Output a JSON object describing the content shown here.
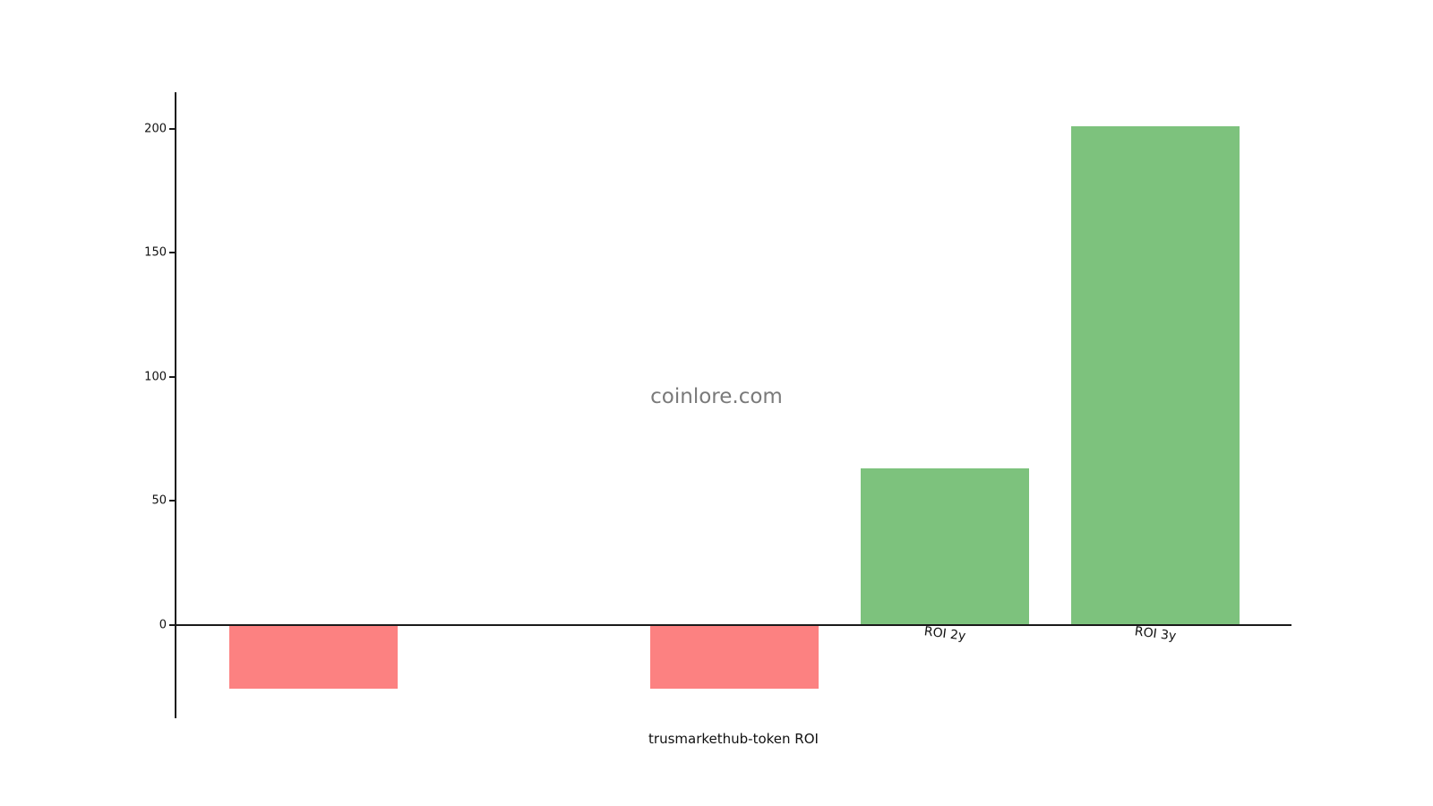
{
  "watermark": {
    "text": "coinlore.com",
    "color": "#7a7a7a"
  },
  "chart_data": {
    "type": "bar",
    "title": "trusmarkethub-token ROI",
    "categories": [
      "",
      "",
      "",
      "ROI 2y",
      "ROI 3y"
    ],
    "values": [
      -26,
      null,
      -26,
      63,
      201
    ],
    "bar_colors": {
      "positive": "#7dc27d",
      "negative": "#fc8181"
    },
    "y_ticks": [
      0,
      50,
      100,
      150,
      200
    ],
    "ylim": [
      -37.8,
      214.6
    ],
    "xlabel": "",
    "ylabel": "",
    "grid": false,
    "legend_position": "none",
    "axis_color": "#1a1a1a"
  }
}
